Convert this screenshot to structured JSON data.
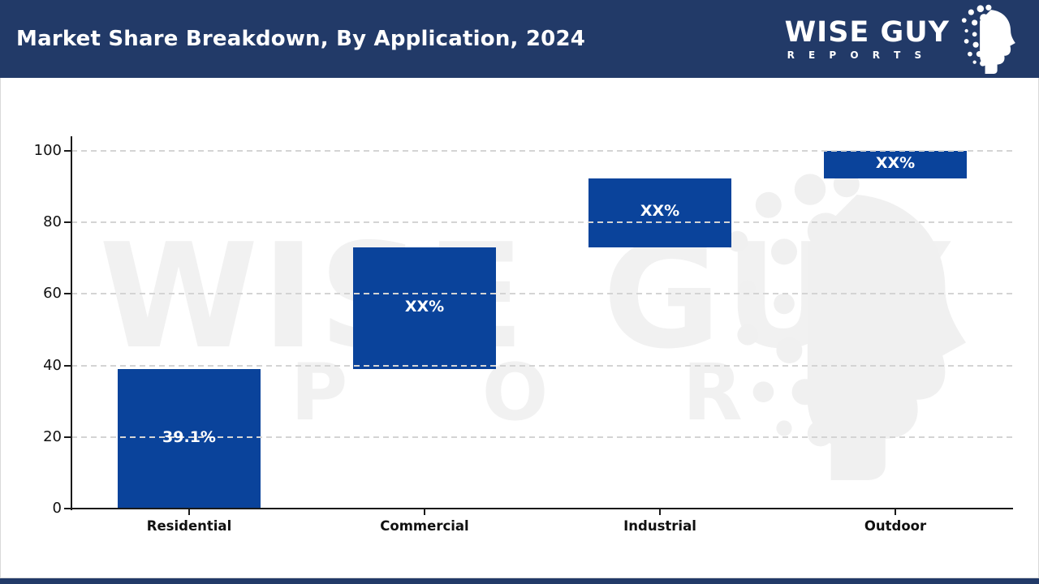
{
  "colors": {
    "header_bg": "#223a68",
    "footer_bg": "#223a68",
    "bar_blue": "#0a439b",
    "grid_gray": "#d4d4d4",
    "watermark_gray": "#f1f1f1"
  },
  "header": {
    "title": "Market Share Breakdown, By Application, 2024",
    "logo": {
      "name": "WISE GUY",
      "sub": "R E P O R T S"
    }
  },
  "watermark": {
    "line1": "WISE GUY",
    "line2": "P O R T S"
  },
  "chart_data": {
    "type": "bar",
    "variant": "floating-segment-waterfall",
    "title": "Market Share Breakdown, By Application, 2024",
    "categories": [
      "Residential",
      "Commercial",
      "Industrial",
      "Outdoor"
    ],
    "segments": [
      {
        "category": "Residential",
        "start": 0,
        "end": 39.1,
        "label": "39.1%"
      },
      {
        "category": "Commercial",
        "start": 39.1,
        "end": 73.0,
        "label": "XX%"
      },
      {
        "category": "Industrial",
        "start": 73.0,
        "end": 92.4,
        "label": "XX%"
      },
      {
        "category": "Outdoor",
        "start": 92.4,
        "end": 100,
        "label": "XX%"
      }
    ],
    "xlabel": "",
    "ylabel": "",
    "ylim": [
      0,
      100
    ],
    "yticks": [
      0,
      20,
      40,
      60,
      80,
      100
    ],
    "grid": {
      "horizontal": true,
      "style": "dashed"
    },
    "bar_color": "#0a439b",
    "bar_label_color": "#ffffff",
    "legend": "none"
  }
}
